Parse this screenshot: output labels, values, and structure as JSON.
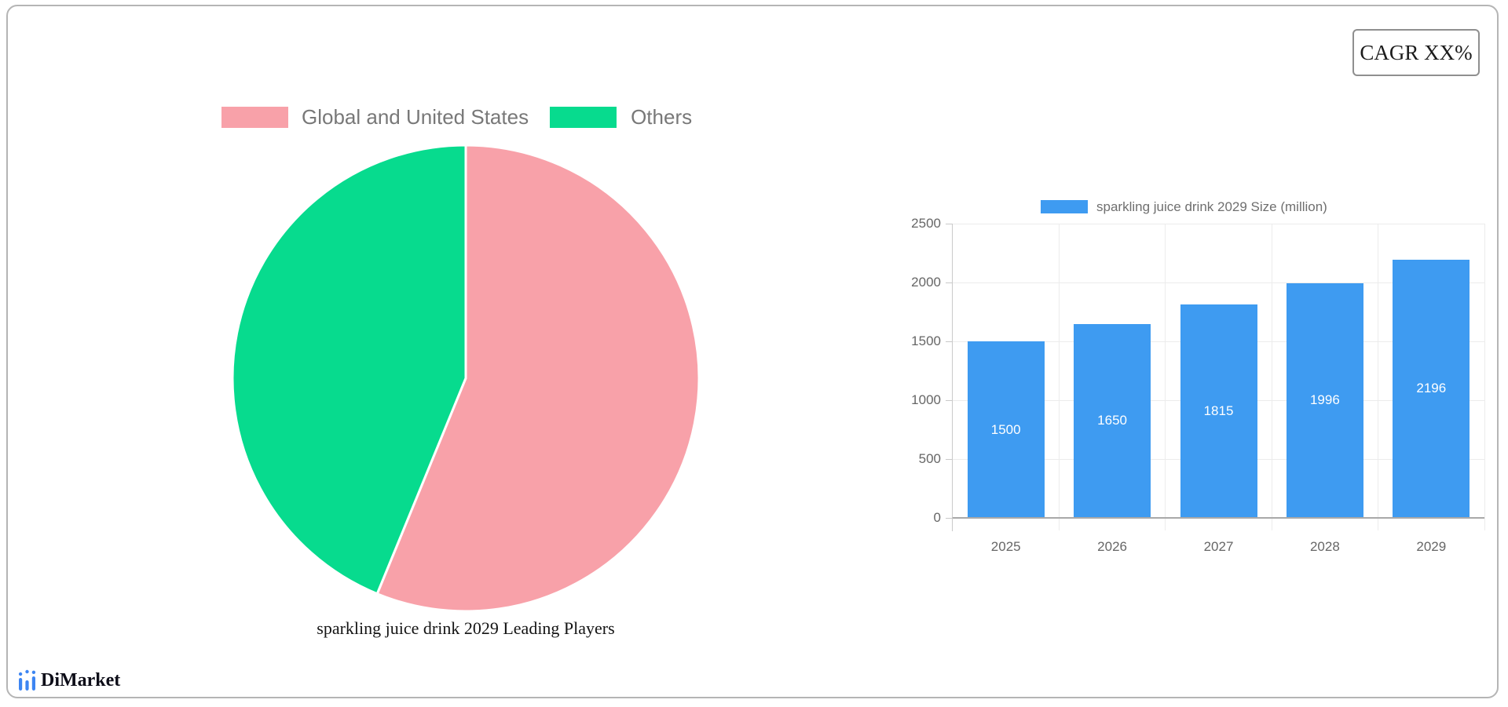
{
  "cagr_box": {
    "label": "CAGR XX%"
  },
  "brand": {
    "name": "DiMarket"
  },
  "colors": {
    "pink": "#F8A1A9",
    "green": "#07DB8E",
    "blue": "#3E9BF1",
    "logo_blue": "#3D85F2",
    "legend_text": "#787878",
    "axis_text": "#666666"
  },
  "chart_data": [
    {
      "type": "pie",
      "title": "sparkling juice drink 2029 Leading Players",
      "legend_position": "top",
      "labels": [
        "Global and United States",
        "Others"
      ],
      "values_percent": [
        56.2,
        43.8
      ],
      "colors": [
        "#F8A1A9",
        "#07DB8E"
      ],
      "start_angle_deg": 0,
      "direction": "clockwise",
      "divider_color": "#ffffff"
    },
    {
      "type": "bar",
      "legend": "sparkling juice drink 2029 Size (million)",
      "categories": [
        "2025",
        "2026",
        "2027",
        "2028",
        "2029"
      ],
      "values": [
        1500,
        1650,
        1815,
        1996,
        2196
      ],
      "bar_color": "#3E9BF1",
      "value_label_color": "#ffffff",
      "xlabel": "",
      "ylabel": "",
      "ylim": [
        0,
        2500
      ],
      "yticks": [
        0,
        500,
        1000,
        1500,
        2000,
        2500
      ],
      "grid": true,
      "legend_position": "top"
    }
  ]
}
